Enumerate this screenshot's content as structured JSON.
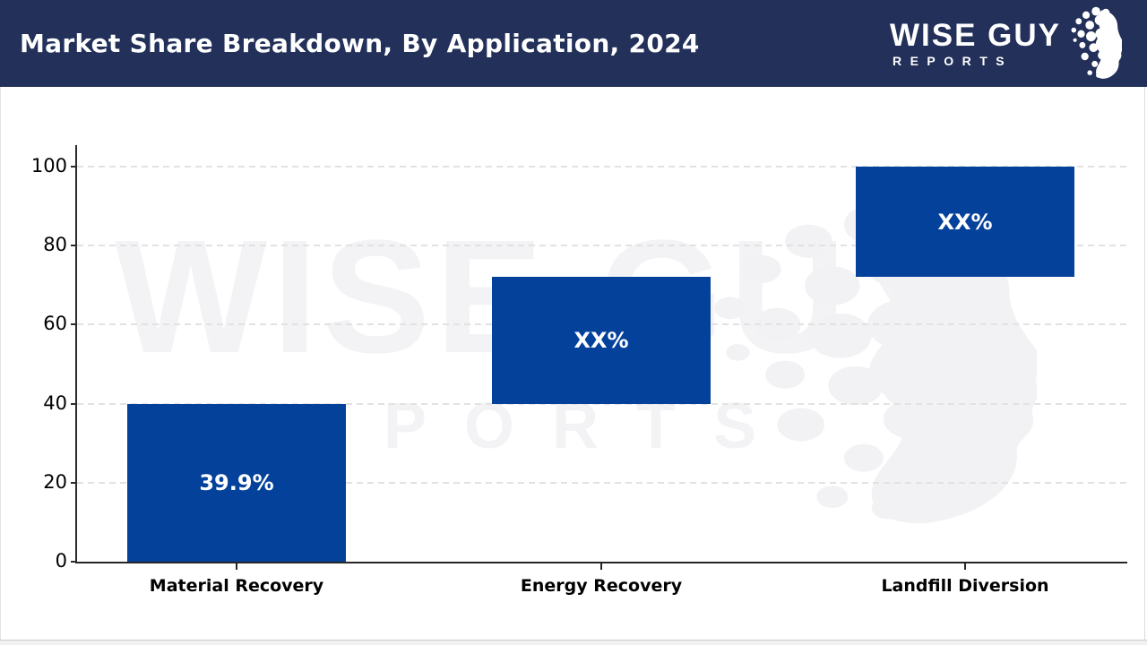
{
  "header": {
    "title": "Market Share Breakdown, By Application, 2024",
    "logo": {
      "line1": "WISE GUY",
      "line2": "REPORTS"
    }
  },
  "watermark": {
    "line1": "WISE GUY",
    "line2": "REPORTS"
  },
  "colors": {
    "header_bg": "#22305A",
    "bar": "#04419B",
    "grid": "#e2e2e2",
    "axis": "#262626",
    "watermark": "#f3f3f5"
  },
  "chart_data": {
    "type": "bar",
    "variant": "floating-segment-waterfall",
    "title": "Market Share Breakdown, By Application, 2024",
    "categories": [
      "Material Recovery",
      "Energy Recovery",
      "Landfill Diversion"
    ],
    "segments": [
      {
        "category": "Material Recovery",
        "start": 0,
        "end": 39.9,
        "label": "39.9%"
      },
      {
        "category": "Energy Recovery",
        "start": 40,
        "end": 72,
        "label": "XX%"
      },
      {
        "category": "Landfill Diversion",
        "start": 72,
        "end": 100,
        "label": "XX%"
      }
    ],
    "yticks": [
      0,
      20,
      40,
      60,
      80,
      100
    ],
    "ylim": [
      0,
      105
    ],
    "xlabel": "",
    "ylabel": "",
    "legend": "none",
    "grid": "horizontal-dashed",
    "bar_color": "#04419B",
    "label_color": "#ffffff"
  }
}
